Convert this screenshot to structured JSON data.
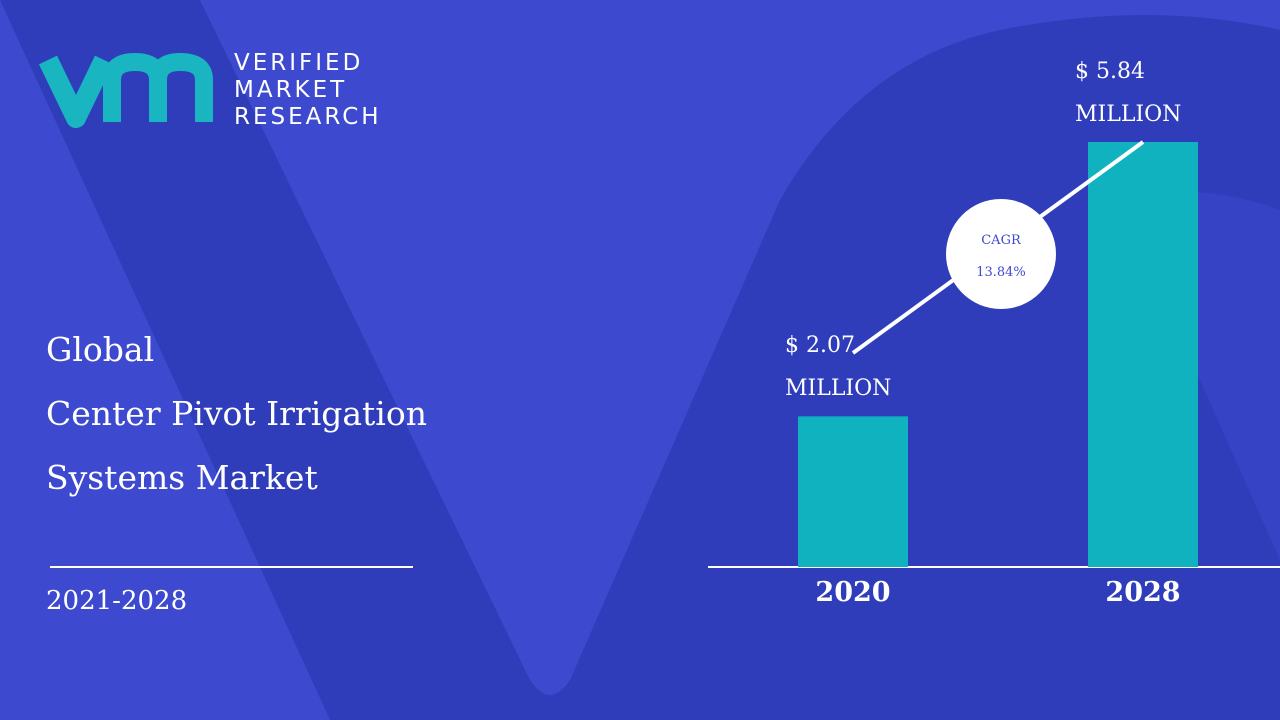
{
  "logo": {
    "lines": [
      "VERIFIED",
      "MARKET",
      "RESEARCH"
    ]
  },
  "chart_data": {
    "type": "bar",
    "title": [
      "Global",
      "Center Pivot Irrigation",
      "Systems Market"
    ],
    "period": "2021-2028",
    "categories": [
      "2020",
      "2028"
    ],
    "values": [
      2.07,
      5.84
    ],
    "value_labels": [
      "$ 2.07 MILLION",
      "$ 5.84 MILLION"
    ],
    "color": "#10b2c0",
    "annotation": {
      "label": "CAGR",
      "value": "13.84%"
    }
  }
}
